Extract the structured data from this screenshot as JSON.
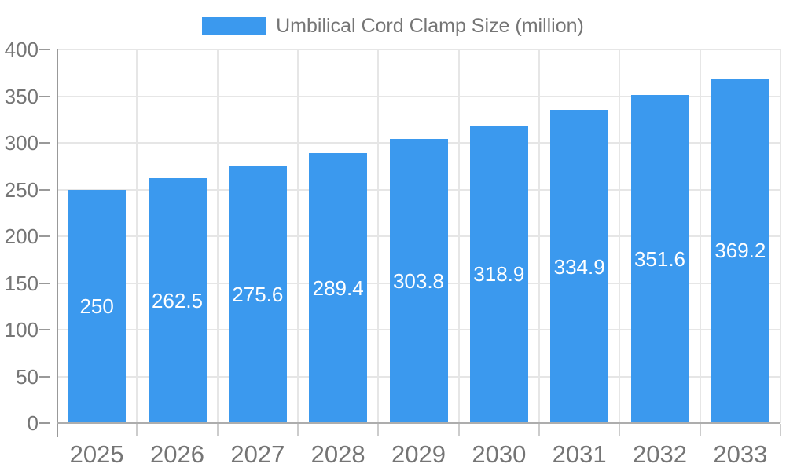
{
  "chart_data": {
    "type": "bar",
    "title": "Umbilical Cord Clamp Size (million)",
    "categories": [
      "2025",
      "2026",
      "2027",
      "2028",
      "2029",
      "2030",
      "2031",
      "2032",
      "2033"
    ],
    "series": [
      {
        "name": "Umbilical Cord Clamp Size (million)",
        "values": [
          250,
          262.5,
          275.6,
          289.4,
          303.8,
          318.9,
          334.9,
          351.6,
          369.2
        ]
      }
    ],
    "value_labels": [
      "250",
      "262.5",
      "275.6",
      "289.4",
      "303.8",
      "318.9",
      "334.9",
      "351.6",
      "369.2"
    ],
    "xlabel": "",
    "ylabel": "",
    "ylim": [
      0,
      400
    ],
    "y_ticks": [
      0,
      50,
      100,
      150,
      200,
      250,
      300,
      350,
      400
    ],
    "grid": true,
    "legend_position": "top",
    "colors": {
      "bar": "#3B99EE",
      "bar_label": "#FFFFFF",
      "axis_text": "#757575",
      "grid_line": "#E6E6E6",
      "axis_line": "#999999",
      "baseline": "#ADADAD",
      "tick": "#CCCCCC",
      "background": "#FFFFFF"
    }
  }
}
